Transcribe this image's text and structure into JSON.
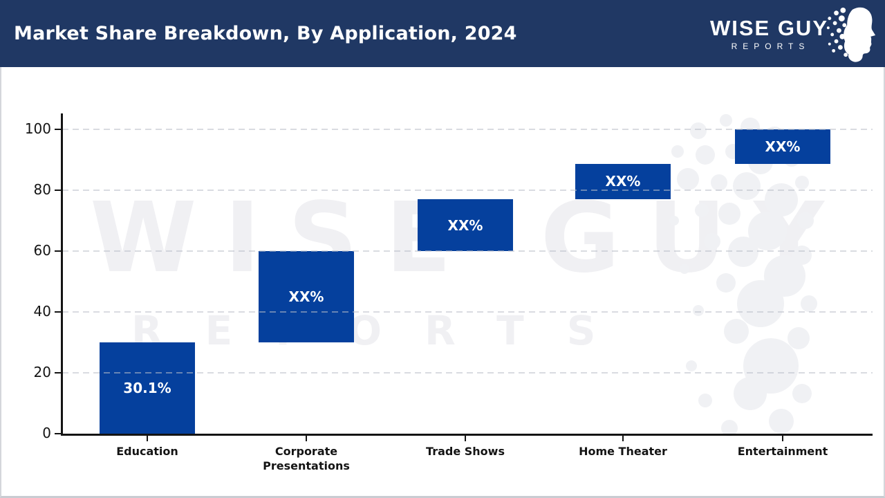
{
  "header": {
    "title": "Market Share Breakdown, By Application, 2024",
    "logo": {
      "line1": "WISE GUY",
      "line2": "REPORTS"
    }
  },
  "watermark": {
    "line1": "WISE GUY",
    "line2": "REPORTS"
  },
  "chart_data": {
    "type": "bar",
    "subtype": "waterfall",
    "title": "Market Share Breakdown, By Application, 2024",
    "categories": [
      "Education",
      "Corporate Presentations",
      "Trade Shows",
      "Home Theater",
      "Entertainment"
    ],
    "segments": [
      {
        "category": "Education",
        "start": 0,
        "end": 30.1,
        "label": "30.1%"
      },
      {
        "category": "Corporate Presentations",
        "start": 30.1,
        "end": 60,
        "label": "XX%"
      },
      {
        "category": "Trade Shows",
        "start": 60,
        "end": 77,
        "label": "XX%"
      },
      {
        "category": "Home Theater",
        "start": 77,
        "end": 88.7,
        "label": "XX%"
      },
      {
        "category": "Entertainment",
        "start": 88.7,
        "end": 100,
        "label": "XX%"
      }
    ],
    "y_ticks": [
      0,
      20,
      40,
      60,
      80,
      100
    ],
    "ylim": [
      0,
      100
    ],
    "xlabel": "",
    "ylabel": "",
    "grid": "dashed-horizontal",
    "legend": "none",
    "bar_color": "#05409d",
    "value_label_color": "#ffffff"
  },
  "colors": {
    "header_bg": "#203864",
    "bar": "#05409d",
    "axis": "#141414",
    "grid": "#dcdde2",
    "watermark": "#f0f0f3"
  }
}
